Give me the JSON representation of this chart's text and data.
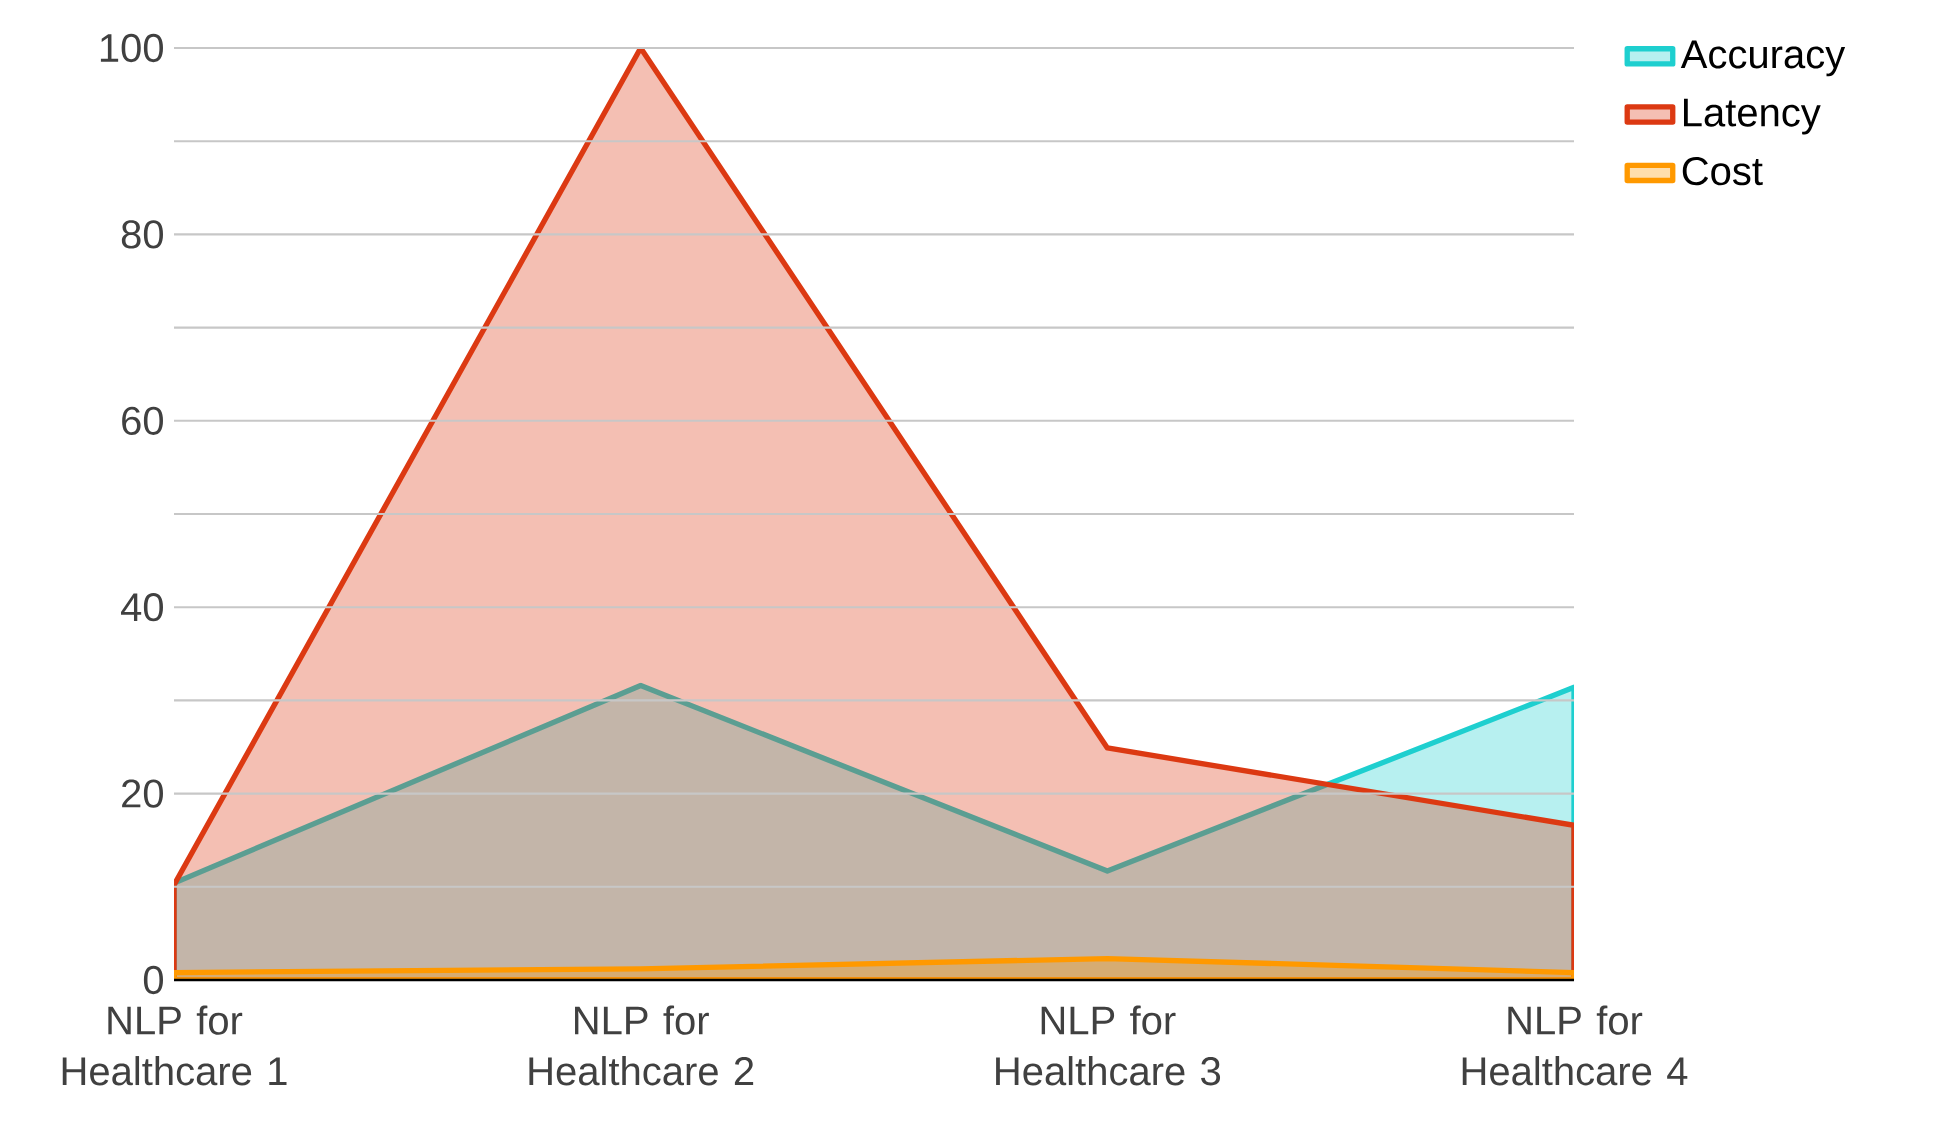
{
  "chart_data": {
    "type": "area",
    "categories": [
      "NLP for Healthcare 1",
      "NLP for Healthcare 2",
      "NLP for Healthcare 3",
      "NLP for Healthcare 4"
    ],
    "series": [
      {
        "name": "Accuracy",
        "color": "#1ecfcf",
        "values": [
          10.4,
          31.6,
          11.7,
          31.4
        ]
      },
      {
        "name": "Latency",
        "color": "#dc3912",
        "values": [
          10.2,
          100,
          24.9,
          16.6
        ]
      },
      {
        "name": "Cost",
        "color": "#ff9900",
        "values": [
          0.8,
          1.2,
          2.3,
          0.8
        ]
      }
    ],
    "ylim": [
      0,
      100
    ],
    "yticks": [
      0,
      {
        "value": 10,
        "label": null
      },
      20,
      {
        "value": 30,
        "label": null
      },
      40,
      {
        "value": 50,
        "label": null
      },
      60,
      {
        "value": 70,
        "label": null
      },
      80,
      {
        "value": 90,
        "label": null
      },
      100
    ],
    "grid": "y",
    "legend": "top right"
  }
}
